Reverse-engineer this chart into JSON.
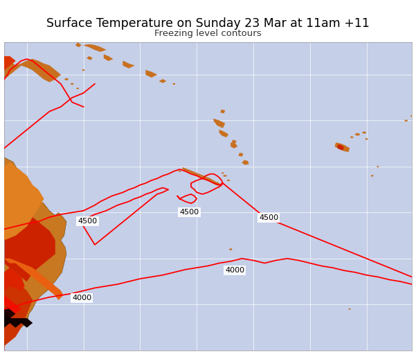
{
  "title": "Surface Temperature on Sunday 23 Mar at 11am +11",
  "subtitle": "Freezing level contours",
  "ocean_color": "#c5cfe8",
  "fig_width": 6.01,
  "fig_height": 5.12,
  "dpi": 100,
  "xlim": [
    148.0,
    184.0
  ],
  "ylim": [
    -40.0,
    -6.5
  ],
  "title_fontsize": 12.5,
  "subtitle_fontsize": 9.5,
  "grid_lons": [
    150,
    155,
    160,
    165,
    170,
    175,
    180
  ],
  "grid_lats": [
    -10,
    -15,
    -20,
    -25,
    -30,
    -35,
    -40
  ]
}
